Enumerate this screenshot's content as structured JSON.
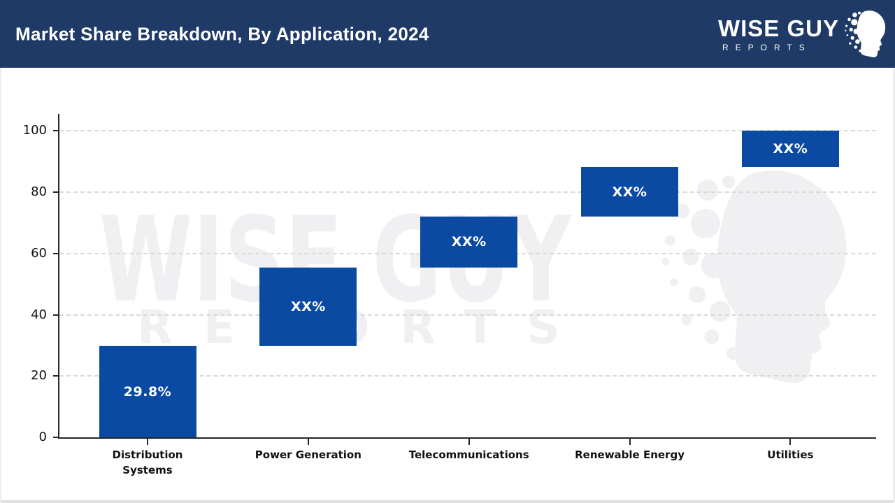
{
  "header": {
    "title": "Market Share Breakdown, By Application, 2024",
    "logo": {
      "name": "WISE GUY",
      "sub": "REPORTS"
    }
  },
  "watermark": {
    "line1": "WISE GUY",
    "line2": "REPORTS"
  },
  "colors": {
    "header_bg": "#1F3A66",
    "bar": "#0B4AA2",
    "axis": "#262626",
    "grid": "#D9D9D9",
    "tick_label": "#111111",
    "bar_label": "#FFFFFF",
    "watermark": "#F0F0F2"
  },
  "chart_data": {
    "type": "bar",
    "subtype": "waterfall",
    "title": "Market Share Breakdown, By Application, 2024",
    "categories": [
      "Distribution\nSystems",
      "Power Generation",
      "Telecommunications",
      "Renewable Energy",
      "Utilities"
    ],
    "segments": [
      {
        "category": "Distribution Systems",
        "start": 0,
        "end": 29.8,
        "label": "29.8%"
      },
      {
        "category": "Power Generation",
        "start": 29.8,
        "end": 55.5,
        "label": "XX%"
      },
      {
        "category": "Telecommunications",
        "start": 55.5,
        "end": 72.0,
        "label": "XX%"
      },
      {
        "category": "Renewable Energy",
        "start": 72.0,
        "end": 88.2,
        "label": "XX%"
      },
      {
        "category": "Utilities",
        "start": 88.2,
        "end": 100.0,
        "label": "XX%"
      }
    ],
    "yticks": [
      0,
      20,
      40,
      60,
      80,
      100
    ],
    "ylim": [
      0,
      105
    ],
    "grid": "horizontal-dashed",
    "legend": "none"
  }
}
